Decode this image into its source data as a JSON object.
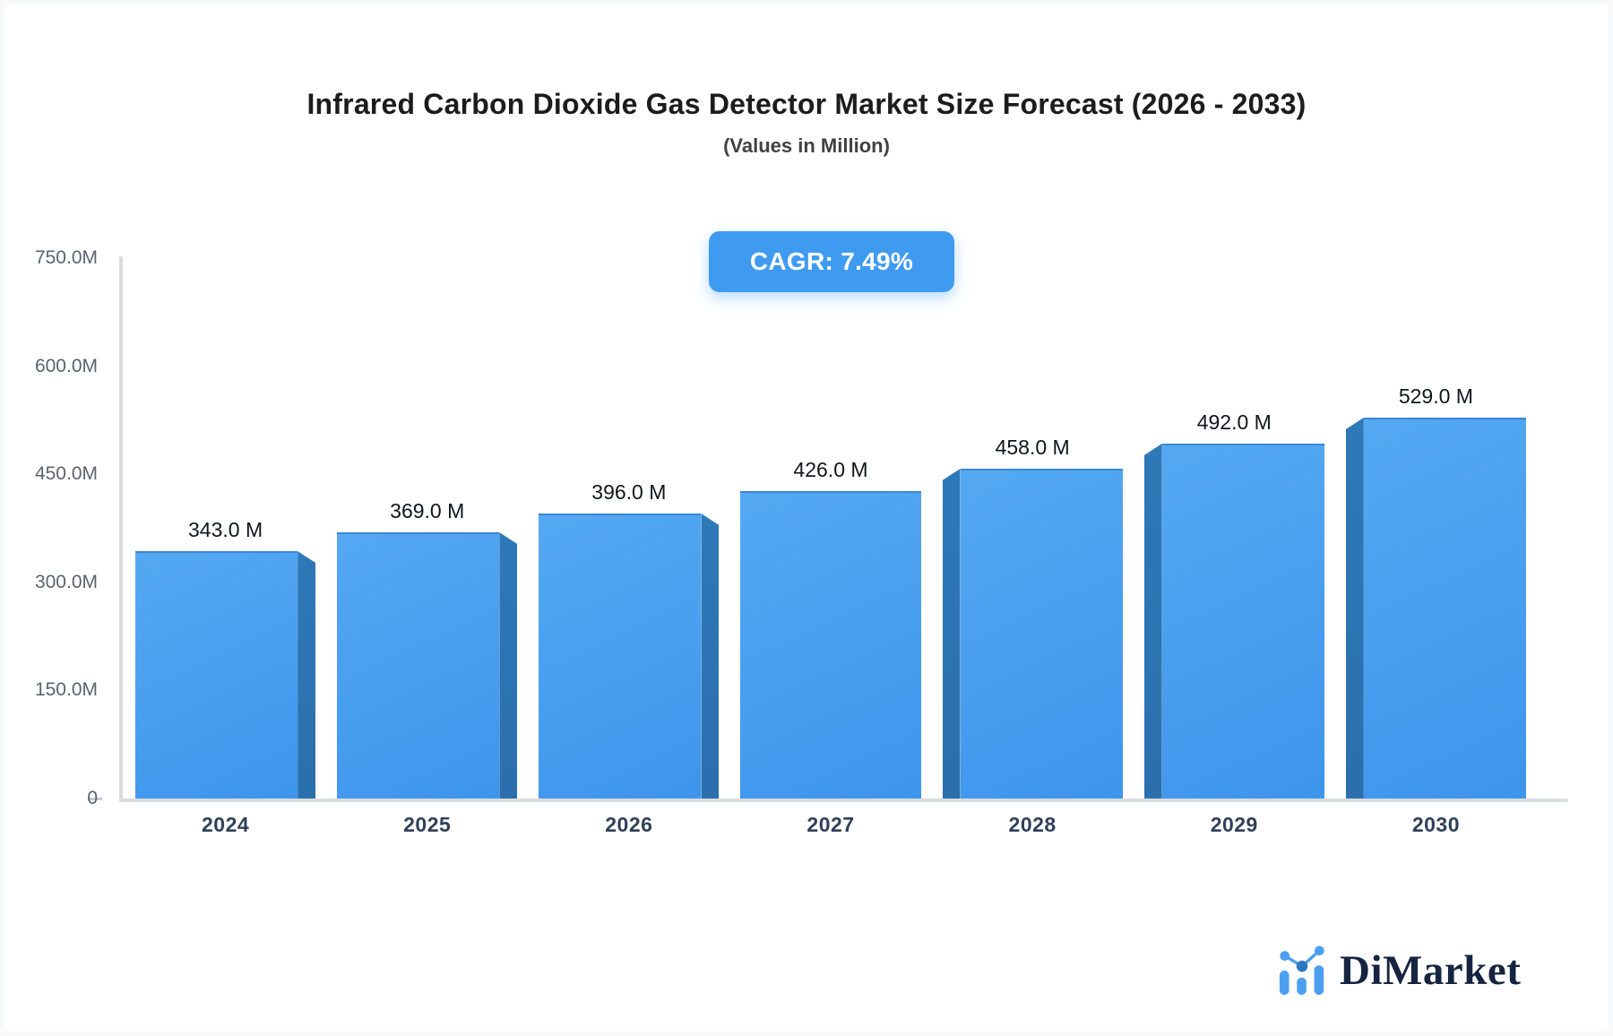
{
  "header": {
    "title": "Infrared Carbon Dioxide Gas Detector Market Size Forecast (2026 - 2033)",
    "subtitle": "(Values in Million)"
  },
  "badge": {
    "label": "CAGR: 7.49%"
  },
  "chart_data": {
    "type": "bar",
    "title": "Infrared Carbon Dioxide Gas Detector Market Size Forecast (2026 - 2033)",
    "subtitle": "(Values in Million)",
    "categories": [
      "2024",
      "2025",
      "2026",
      "2027",
      "2028",
      "2029",
      "2030"
    ],
    "values": [
      343,
      369,
      396,
      426,
      458,
      492,
      529
    ],
    "value_labels": [
      "343.0 M",
      "369.0 M",
      "396.0 M",
      "426.0 M",
      "458.0 M",
      "492.0 M",
      "529.0 M"
    ],
    "xlabel": "",
    "ylabel": "",
    "ylim": [
      0,
      750
    ],
    "yticks": [
      0,
      150,
      300,
      450,
      600,
      750
    ],
    "ytick_labels": [
      "0",
      "150.0M",
      "300.0M",
      "450.0M",
      "600.0M",
      "750.0M"
    ],
    "grid": false,
    "legend": false,
    "style": "3d-perspective-bars",
    "cagr": "7.49%"
  },
  "colors": {
    "page_bg": "#f7f8fa",
    "card_bg": "#ffffff",
    "bar_front_light": "#55a9f2",
    "bar_front_dark": "#3d95ec",
    "bar_side": "#2d74b4",
    "badge_bg": "#3f9bf0",
    "axis_line": "#d9dce1",
    "title_text": "#1c1c1c",
    "label_text": "#10151c",
    "tick_text": "#5a6370",
    "xlabel_text": "#30405a",
    "logo_navy": "#152441",
    "logo_blue": "#4c9ff0"
  },
  "logo": {
    "text": "DiMarket",
    "icon": "mini-bar-line-chart-icon"
  }
}
